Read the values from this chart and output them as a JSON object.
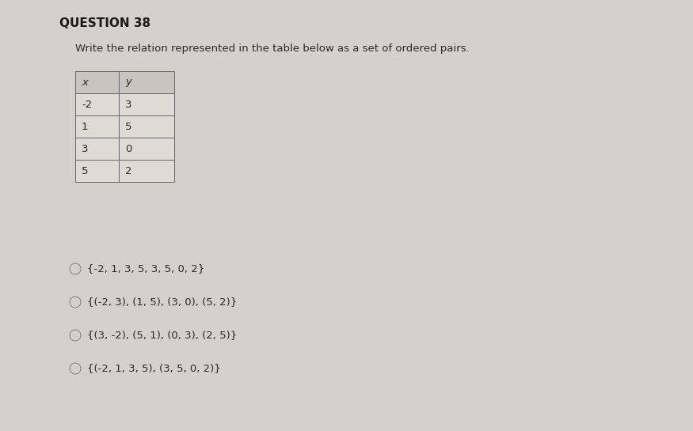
{
  "title": "QUESTION 38",
  "question_text": "Write the relation represented in the table below as a set of ordered pairs.",
  "table_headers": [
    "x",
    "y"
  ],
  "table_data": [
    [
      "-2",
      "3"
    ],
    [
      "1",
      "5"
    ],
    [
      "3",
      "0"
    ],
    [
      "5",
      "2"
    ]
  ],
  "options": [
    "{-2, 1, 3, 5, 3, 5, 0, 2}",
    "{(-2, 3), (1, 5), (3, 0), (5, 2)}",
    "{(3, -2), (5, 1), (0, 3), (2, 5)}",
    "{(-2, 1, 3, 5), (3, 5, 0, 2)}"
  ],
  "bg_color": "#d4d0cb",
  "table_cell_bg": "#dedad4",
  "table_header_bg": "#c8c4be",
  "table_border_color": "#666666",
  "title_fontsize": 11,
  "question_fontsize": 9.5,
  "option_fontsize": 9.5,
  "table_fontsize": 9.5
}
